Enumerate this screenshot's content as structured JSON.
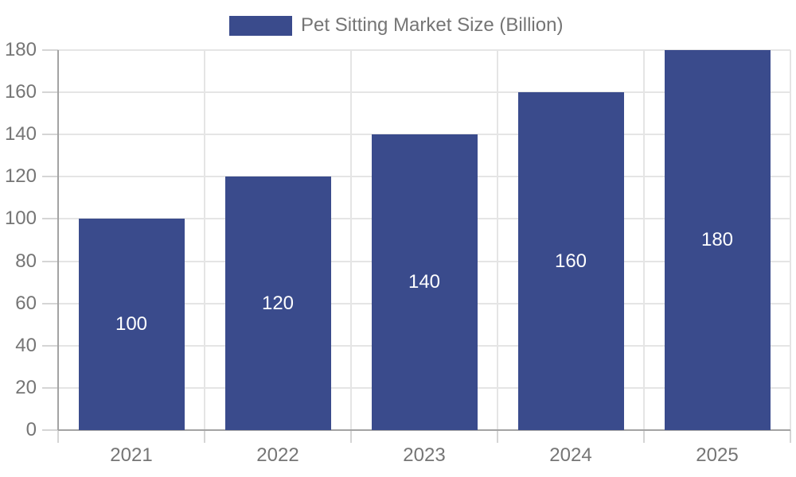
{
  "legend": {
    "label": "Pet Sitting Market Size (Billion)"
  },
  "colors": {
    "bar": "#3A4B8C",
    "bar_label": "#FFFFFF",
    "axis": "#A3A3A3",
    "grid": "#E5E5E5",
    "tick": "#D5D5D5",
    "text": "#757575",
    "background": "#FFFFFF"
  },
  "chart_data": {
    "type": "bar",
    "title": "Pet Sitting Market Size (Billion)",
    "categories": [
      "2021",
      "2022",
      "2023",
      "2024",
      "2025"
    ],
    "values": [
      100,
      120,
      140,
      160,
      180
    ],
    "value_labels": [
      "100",
      "120",
      "140",
      "160",
      "180"
    ],
    "yticks": [
      0,
      20,
      40,
      60,
      80,
      100,
      120,
      140,
      160,
      180
    ],
    "ytick_labels": [
      "0",
      "20",
      "40",
      "60",
      "80",
      "100",
      "120",
      "140",
      "160",
      "180"
    ],
    "xlabel": "",
    "ylabel": "",
    "ylim": [
      0,
      180
    ],
    "grid": true,
    "legend_position": "top-center",
    "bar_labels_inside": "center"
  }
}
